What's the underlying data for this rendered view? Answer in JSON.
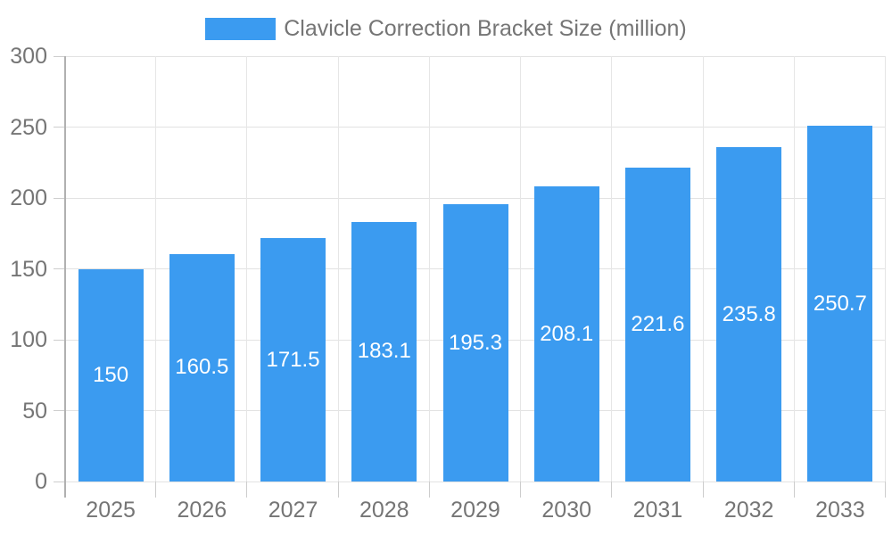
{
  "chart_data": {
    "type": "bar",
    "title": "Clavicle Correction Bracket Size (million)",
    "categories": [
      "2025",
      "2026",
      "2027",
      "2028",
      "2029",
      "2030",
      "2031",
      "2032",
      "2033"
    ],
    "values": [
      150,
      160.5,
      171.5,
      183.1,
      195.3,
      208.1,
      221.6,
      235.8,
      250.7
    ],
    "value_labels": [
      "150",
      "160.5",
      "171.5",
      "183.1",
      "195.3",
      "208.1",
      "221.6",
      "235.8",
      "250.7"
    ],
    "xlabel": "",
    "ylabel": "",
    "ylim": [
      0,
      300
    ],
    "yticks": [
      0,
      50,
      100,
      150,
      200,
      250,
      300
    ],
    "grid": true,
    "legend_position": "top-center",
    "colors": {
      "bar": "#3b9bf0",
      "value_label": "#ffffff",
      "axis_text": "#757575",
      "hgridline": "#e2e2e2",
      "vgridline": "#e6e6e6",
      "axis_line": "#b1b1b1",
      "tick": "#cdcdcd",
      "background": "#ffffff"
    }
  }
}
